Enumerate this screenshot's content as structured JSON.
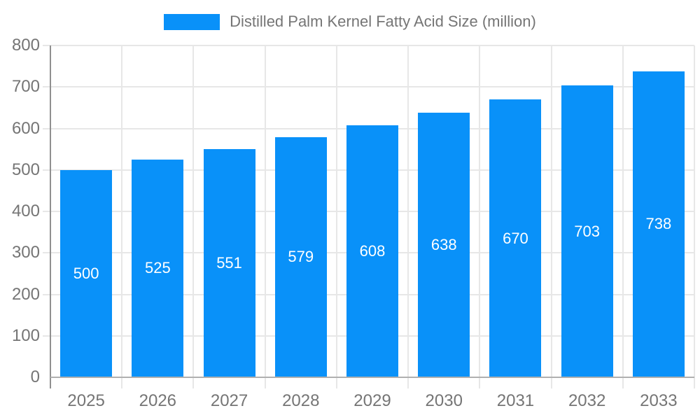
{
  "chart_data": {
    "type": "bar",
    "title": "Distilled Palm Kernel Fatty Acid Size (million)",
    "categories": [
      "2025",
      "2026",
      "2027",
      "2028",
      "2029",
      "2030",
      "2031",
      "2032",
      "2033"
    ],
    "values": [
      500,
      525,
      551,
      579,
      608,
      638,
      670,
      703,
      738
    ],
    "xlabel": "",
    "ylabel": "",
    "ylim": [
      0,
      800
    ],
    "ytick_step": 100,
    "ytick_labels": [
      "0",
      "100",
      "200",
      "300",
      "400",
      "500",
      "600",
      "700",
      "800"
    ],
    "grid": true,
    "legend_position": "top",
    "value_labels": "inside-center"
  },
  "colors": {
    "bar": "#0991f9",
    "grid": "#e7e7e7",
    "y_axis": "#909090",
    "x_axis": "#b0b0b0",
    "tick_text": "#757575",
    "value_text": "#ffffff",
    "background": "#ffffff"
  }
}
